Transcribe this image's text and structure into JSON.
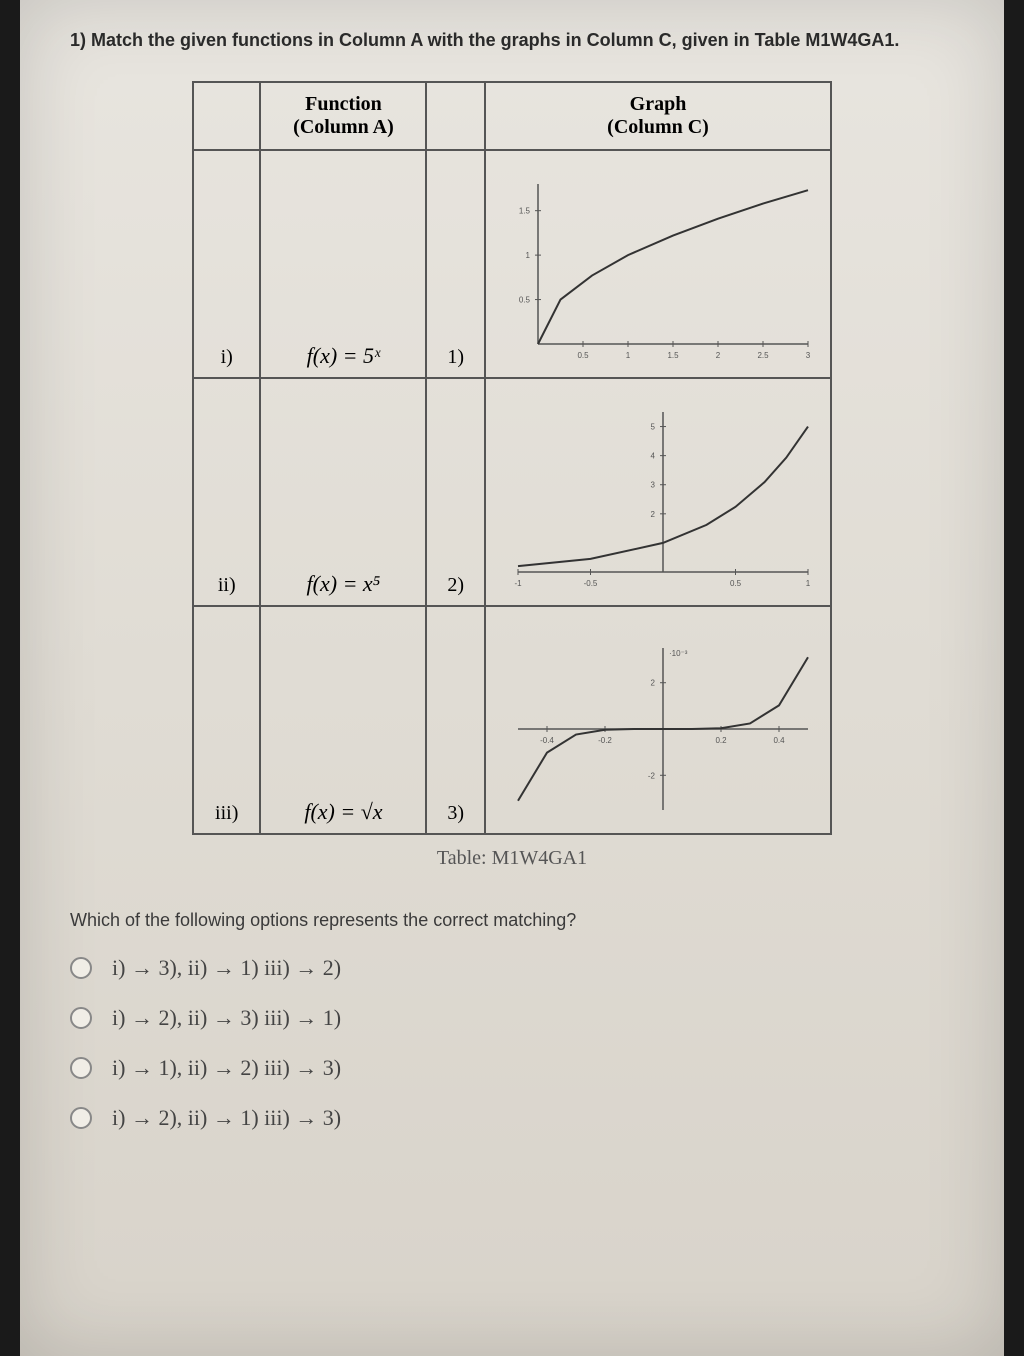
{
  "question": "1) Match the given functions in Column A with the graphs in Column C, given in Table M1W4GA1.",
  "headers": {
    "colA_line1": "Function",
    "colA_line2": "(Column A)",
    "colC_line1": "Graph",
    "colC_line2": "(Column C)"
  },
  "rows": [
    {
      "idx": "i)",
      "fn": "f(x) = 5ˣ",
      "num": "1)"
    },
    {
      "idx": "ii)",
      "fn": "f(x) = x⁵",
      "num": "2)"
    },
    {
      "idx": "iii)",
      "fn": "f(x) = √x",
      "num": "3)"
    }
  ],
  "graph1": {
    "type": "line",
    "background": "#e4e0d8",
    "axis_color": "#555555",
    "curve_color": "#333333",
    "line_width": 2,
    "x_ticks": [
      "0.5",
      "1",
      "1.5",
      "2",
      "2.5",
      "3"
    ],
    "y_ticks": [
      "0.5",
      "1",
      "1.5"
    ],
    "xlim": [
      0,
      3
    ],
    "ylim": [
      0,
      1.8
    ],
    "points": [
      [
        0.0,
        0.0
      ],
      [
        0.25,
        0.5
      ],
      [
        0.6,
        0.77
      ],
      [
        1.0,
        1.0
      ],
      [
        1.5,
        1.22
      ],
      [
        2.0,
        1.41
      ],
      [
        2.5,
        1.58
      ],
      [
        3.0,
        1.73
      ]
    ]
  },
  "graph2": {
    "type": "line",
    "background": "#e4e0d8",
    "axis_color": "#555555",
    "curve_color": "#333333",
    "line_width": 2,
    "x_ticks": [
      "-1",
      "-0.5",
      "0.5",
      "1"
    ],
    "y_ticks": [
      "2",
      "3",
      "4",
      "5"
    ],
    "xlim": [
      -1,
      1
    ],
    "ylim": [
      0,
      5.5
    ],
    "points": [
      [
        -1.0,
        0.2
      ],
      [
        -0.5,
        0.45
      ],
      [
        0.0,
        1.0
      ],
      [
        0.3,
        1.62
      ],
      [
        0.5,
        2.24
      ],
      [
        0.7,
        3.09
      ],
      [
        0.85,
        3.93
      ],
      [
        1.0,
        5.0
      ]
    ]
  },
  "graph3": {
    "type": "line",
    "background": "#e4e0d8",
    "axis_color": "#555555",
    "curve_color": "#333333",
    "line_width": 2,
    "exp_label": "·10⁻³",
    "x_ticks": [
      "-0.4",
      "-0.2",
      "0.2",
      "0.4"
    ],
    "y_ticks": [
      "-2",
      "2"
    ],
    "xlim": [
      -0.5,
      0.5
    ],
    "ylim": [
      -3.5,
      3.5
    ],
    "points": [
      [
        -0.5,
        -3.1
      ],
      [
        -0.4,
        -1.02
      ],
      [
        -0.3,
        -0.24
      ],
      [
        -0.2,
        -0.032
      ],
      [
        -0.1,
        -0.001
      ],
      [
        0.0,
        0.0
      ],
      [
        0.1,
        0.001
      ],
      [
        0.2,
        0.032
      ],
      [
        0.3,
        0.24
      ],
      [
        0.4,
        1.02
      ],
      [
        0.5,
        3.1
      ]
    ]
  },
  "caption": "Table: M1W4GA1",
  "subquestion": "Which of the following options represents the correct matching?",
  "options": [
    "i) → 3), ii) → 1) iii) → 2)",
    "i) → 2), ii) → 3) iii) → 1)",
    "i) → 1), ii) → 2) iii) → 3)",
    "i) → 2), ii) → 1) iii) → 3)"
  ],
  "colors": {
    "page_bg": "#e4e0d8",
    "text": "#2a2a2a",
    "border": "#555555"
  }
}
